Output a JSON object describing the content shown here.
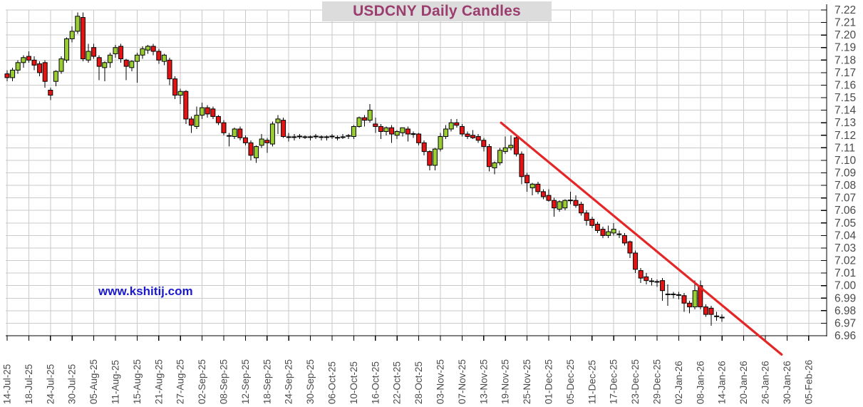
{
  "title": "USDCNY Daily Candles",
  "watermark": "www.kshitij.com",
  "colors": {
    "up_candle": "#9acd32",
    "down_candle": "#e41414",
    "candle_border": "#000000",
    "wick": "#000000",
    "grid": "#c9c9c9",
    "axis": "#000000",
    "trendline": "#e42626",
    "title_text": "#9b3d6e",
    "title_background": "#dcdcdc",
    "axis_label": "#4a4a4a",
    "watermark_text": "#1a1acc",
    "background": "#ffffff"
  },
  "chart_data": {
    "type": "candlestick",
    "title": "USDCNY Daily Candles",
    "series_name": "USDCNY",
    "timeframe": "Daily",
    "ylim": [
      6.96,
      7.22
    ],
    "y_tick_step": 0.01,
    "y_ticks": [
      7.22,
      7.21,
      7.2,
      7.19,
      7.18,
      7.17,
      7.16,
      7.15,
      7.14,
      7.13,
      7.12,
      7.11,
      7.1,
      7.09,
      7.08,
      7.07,
      7.06,
      7.05,
      7.04,
      7.03,
      7.02,
      7.01,
      7.0,
      6.99,
      6.98,
      6.97,
      6.96
    ],
    "x_labels": [
      "14-Jul-25",
      "18-Jul-25",
      "24-Jul-25",
      "30-Jul-25",
      "05-Aug-25",
      "11-Aug-25",
      "15-Aug-25",
      "21-Aug-25",
      "27-Aug-25",
      "02-Sep-25",
      "08-Sep-25",
      "12-Sep-25",
      "18-Sep-25",
      "24-Sep-25",
      "30-Sep-25",
      "06-Oct-25",
      "10-Oct-25",
      "16-Oct-25",
      "22-Oct-25",
      "28-Oct-25",
      "03-Nov-25",
      "07-Nov-25",
      "13-Nov-25",
      "19-Nov-25",
      "25-Nov-25",
      "01-Dec-25",
      "05-Dec-25",
      "11-Dec-25",
      "17-Dec-25",
      "23-Dec-25",
      "29-Dec-25",
      "02-Jan-26",
      "08-Jan-26",
      "14-Jan-26",
      "20-Jan-26",
      "26-Jan-26",
      "30-Jan-26",
      "05-Feb-26"
    ],
    "candles_per_gridline": 4,
    "grid": true,
    "legend": "none",
    "candles_ohlc": [
      [
        7.169,
        7.172,
        7.163,
        7.166
      ],
      [
        7.166,
        7.174,
        7.163,
        7.172
      ],
      [
        7.172,
        7.18,
        7.169,
        7.178
      ],
      [
        7.178,
        7.184,
        7.174,
        7.182
      ],
      [
        7.183,
        7.187,
        7.178,
        7.18
      ],
      [
        7.18,
        7.183,
        7.172,
        7.176
      ],
      [
        7.177,
        7.179,
        7.167,
        7.17
      ],
      [
        7.178,
        7.18,
        7.158,
        7.163
      ],
      [
        7.156,
        7.158,
        7.148,
        7.152
      ],
      [
        7.163,
        7.172,
        7.159,
        7.171
      ],
      [
        7.171,
        7.183,
        7.169,
        7.181
      ],
      [
        7.18,
        7.198,
        7.178,
        7.197
      ],
      [
        7.197,
        7.207,
        7.194,
        7.203
      ],
      [
        7.203,
        7.218,
        7.201,
        7.215
      ],
      [
        7.214,
        7.218,
        7.179,
        7.181
      ],
      [
        7.18,
        7.193,
        7.178,
        7.187
      ],
      [
        7.19,
        7.193,
        7.181,
        7.183
      ],
      [
        7.182,
        7.184,
        7.164,
        7.175
      ],
      [
        7.174,
        7.179,
        7.163,
        7.178
      ],
      [
        7.178,
        7.186,
        7.174,
        7.184
      ],
      [
        7.185,
        7.192,
        7.182,
        7.19
      ],
      [
        7.191,
        7.193,
        7.178,
        7.181
      ],
      [
        7.18,
        7.181,
        7.164,
        7.175
      ],
      [
        7.174,
        7.18,
        7.171,
        7.179
      ],
      [
        7.179,
        7.186,
        7.162,
        7.184
      ],
      [
        7.184,
        7.191,
        7.181,
        7.189
      ],
      [
        7.188,
        7.192,
        7.185,
        7.191
      ],
      [
        7.191,
        7.193,
        7.184,
        7.187
      ],
      [
        7.187,
        7.189,
        7.177,
        7.18
      ],
      [
        7.179,
        7.185,
        7.176,
        7.184
      ],
      [
        7.18,
        7.182,
        7.16,
        7.165
      ],
      [
        7.165,
        7.167,
        7.149,
        7.152
      ],
      [
        7.152,
        7.157,
        7.145,
        7.155
      ],
      [
        7.155,
        7.156,
        7.129,
        7.133
      ],
      [
        7.133,
        7.135,
        7.122,
        7.128
      ],
      [
        7.127,
        7.143,
        7.125,
        7.136
      ],
      [
        7.136,
        7.146,
        7.133,
        7.142
      ],
      [
        7.142,
        7.144,
        7.134,
        7.137
      ],
      [
        7.141,
        7.143,
        7.133,
        7.135
      ],
      [
        7.135,
        7.136,
        7.128,
        7.13
      ],
      [
        7.13,
        7.132,
        7.12,
        7.122
      ],
      [
        7.12,
        7.122,
        7.111,
        7.119
      ],
      [
        7.119,
        7.126,
        7.117,
        7.125
      ],
      [
        7.125,
        7.127,
        7.116,
        7.118
      ],
      [
        7.118,
        7.12,
        7.112,
        7.114
      ],
      [
        7.114,
        7.116,
        7.1,
        7.104
      ],
      [
        7.102,
        7.112,
        7.098,
        7.111
      ],
      [
        7.112,
        7.121,
        7.11,
        7.117
      ],
      [
        7.116,
        7.118,
        7.106,
        7.114
      ],
      [
        7.113,
        7.131,
        7.111,
        7.129
      ],
      [
        7.13,
        7.136,
        7.121,
        7.133
      ],
      [
        7.132,
        7.134,
        7.118,
        7.119
      ],
      [
        7.119,
        7.122,
        7.115,
        7.118
      ],
      [
        7.118,
        7.121,
        7.116,
        7.119
      ],
      [
        7.119,
        7.121,
        7.117,
        7.119
      ],
      [
        7.119,
        7.12,
        7.117,
        7.118
      ],
      [
        7.118,
        7.12,
        7.116,
        7.119
      ],
      [
        7.119,
        7.121,
        7.117,
        7.119
      ],
      [
        7.119,
        7.12,
        7.116,
        7.118
      ],
      [
        7.118,
        7.12,
        7.116,
        7.119
      ],
      [
        7.119,
        7.121,
        7.117,
        7.119
      ],
      [
        7.118,
        7.12,
        7.116,
        7.118
      ],
      [
        7.118,
        7.121,
        7.117,
        7.119
      ],
      [
        7.119,
        7.121,
        7.117,
        7.12
      ],
      [
        7.119,
        7.128,
        7.117,
        7.127
      ],
      [
        7.127,
        7.135,
        7.126,
        7.134
      ],
      [
        7.134,
        7.136,
        7.127,
        7.132
      ],
      [
        7.132,
        7.145,
        7.13,
        7.14
      ],
      [
        7.129,
        7.134,
        7.122,
        7.127
      ],
      [
        7.127,
        7.129,
        7.117,
        7.123
      ],
      [
        7.123,
        7.127,
        7.12,
        7.126
      ],
      [
        7.126,
        7.128,
        7.114,
        7.121
      ],
      [
        7.12,
        7.124,
        7.117,
        7.123
      ],
      [
        7.122,
        7.126,
        7.119,
        7.126
      ],
      [
        7.125,
        7.127,
        7.115,
        7.121
      ],
      [
        7.121,
        7.123,
        7.118,
        7.121
      ],
      [
        7.121,
        7.122,
        7.112,
        7.114
      ],
      [
        7.114,
        7.116,
        7.104,
        7.107
      ],
      [
        7.107,
        7.108,
        7.092,
        7.096
      ],
      [
        7.096,
        7.11,
        7.092,
        7.109
      ],
      [
        7.109,
        7.122,
        7.107,
        7.119
      ],
      [
        7.119,
        7.128,
        7.117,
        7.125
      ],
      [
        7.125,
        7.133,
        7.123,
        7.13
      ],
      [
        7.13,
        7.133,
        7.126,
        7.128
      ],
      [
        7.127,
        7.129,
        7.119,
        7.121
      ],
      [
        7.121,
        7.123,
        7.117,
        7.119
      ],
      [
        7.12,
        7.124,
        7.117,
        7.118
      ],
      [
        7.119,
        7.121,
        7.114,
        7.116
      ],
      [
        7.116,
        7.118,
        7.107,
        7.111
      ],
      [
        7.111,
        7.113,
        7.091,
        7.095
      ],
      [
        7.094,
        7.099,
        7.089,
        7.098
      ],
      [
        7.098,
        7.11,
        7.096,
        7.108
      ],
      [
        7.107,
        7.119,
        7.105,
        7.11
      ],
      [
        7.11,
        7.12,
        7.108,
        7.112
      ],
      [
        7.118,
        7.121,
        7.103,
        7.105
      ],
      [
        7.105,
        7.107,
        7.081,
        7.087
      ],
      [
        7.088,
        7.09,
        7.075,
        7.082
      ],
      [
        7.078,
        7.082,
        7.072,
        7.081
      ],
      [
        7.081,
        7.083,
        7.073,
        7.075
      ],
      [
        7.075,
        7.077,
        7.069,
        7.071
      ],
      [
        7.072,
        7.077,
        7.067,
        7.068
      ],
      [
        7.068,
        7.07,
        7.055,
        7.062
      ],
      [
        7.061,
        7.068,
        7.059,
        7.067
      ],
      [
        7.062,
        7.069,
        7.06,
        7.068
      ],
      [
        7.068,
        7.075,
        7.065,
        7.068
      ],
      [
        7.068,
        7.072,
        7.062,
        7.064
      ],
      [
        7.065,
        7.067,
        7.056,
        7.058
      ],
      [
        7.058,
        7.06,
        7.048,
        7.052
      ],
      [
        7.053,
        7.055,
        7.046,
        7.048
      ],
      [
        7.049,
        7.051,
        7.042,
        7.044
      ],
      [
        7.045,
        7.047,
        7.038,
        7.04
      ],
      [
        7.04,
        7.048,
        7.038,
        7.043
      ],
      [
        7.042,
        7.05,
        7.04,
        7.045
      ],
      [
        7.041,
        7.044,
        7.038,
        7.041
      ],
      [
        7.04,
        7.042,
        7.032,
        7.034
      ],
      [
        7.035,
        7.036,
        7.022,
        7.026
      ],
      [
        7.026,
        7.028,
        7.01,
        7.013
      ],
      [
        7.012,
        7.014,
        7.002,
        7.006
      ],
      [
        7.007,
        7.01,
        7.001,
        7.004
      ],
      [
        7.004,
        7.006,
        7.0,
        7.003
      ],
      [
        7.003,
        7.005,
        6.999,
        7.003
      ],
      [
        7.004,
        7.006,
        6.988,
        6.996
      ],
      [
        6.993,
        7.001,
        6.984,
        6.993
      ],
      [
        6.993,
        6.995,
        6.99,
        6.993
      ],
      [
        6.992,
        6.995,
        6.989,
        6.993
      ],
      [
        6.992,
        6.994,
        6.979,
        6.986
      ],
      [
        6.986,
        6.988,
        6.978,
        6.983
      ],
      [
        6.983,
        7.004,
        6.981,
        6.996
      ],
      [
        7.0,
        7.004,
        6.981,
        6.983
      ],
      [
        6.983,
        6.985,
        6.975,
        6.977
      ],
      [
        6.982,
        6.984,
        6.968,
        6.977
      ],
      [
        6.976,
        6.979,
        6.972,
        6.975
      ],
      [
        6.975,
        6.977,
        6.971,
        6.974
      ]
    ],
    "trendline": {
      "type": "resistance",
      "start_candle_index": 91.2,
      "start_price": 7.13,
      "end_candle_index": 143.0,
      "end_price": 6.945
    }
  }
}
